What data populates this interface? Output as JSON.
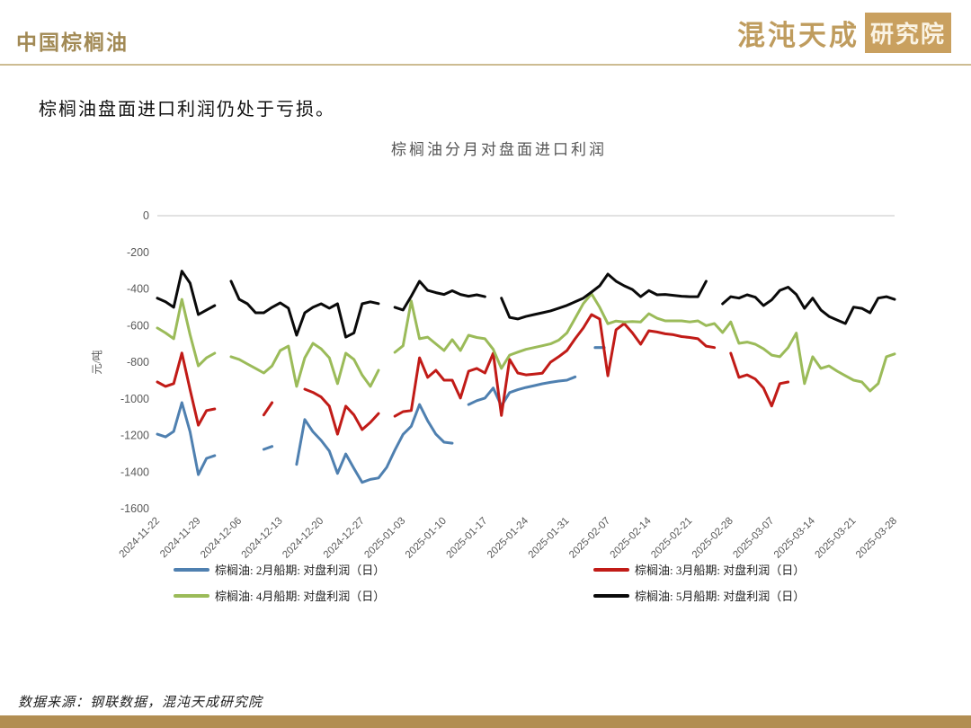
{
  "header": {
    "title": "中国棕榈油",
    "logo_text": "混沌天成",
    "logo_badge": "研究院"
  },
  "subtitle": "棕榈油盘面进口利润仍处于亏损。",
  "footer": {
    "source": "数据来源：钢联数据，混沌天成研究院"
  },
  "colors": {
    "header_gold": "#a28a55",
    "logo_gold": "#bf9c5e",
    "badge_bg": "#c9a05f",
    "rule": "#cdbc92",
    "bottom_bar": "#b28e52",
    "tick_gray": "#595959",
    "zero_gridline": "#d9d9d9",
    "series_blue": "#4f80b0",
    "series_red": "#c11b17",
    "series_green": "#9bbb59",
    "series_black": "#0a0a0a"
  },
  "chart_data": {
    "type": "line",
    "title": "棕榈油分月对盘面进口利润",
    "ylabel": "元/吨",
    "ylim": [
      -1600,
      0
    ],
    "y_ticks": [
      0,
      -200,
      -400,
      -600,
      -800,
      -1000,
      -1200,
      -1400,
      -1600
    ],
    "grid": "zero-line-only",
    "legend_position": "bottom",
    "x_slots": 91,
    "x_tick_every": 5,
    "x_tick_labels": [
      "2024-11-22",
      "2024-11-29",
      "2024-12-06",
      "2024-12-13",
      "2024-12-20",
      "2024-12-27",
      "2025-01-03",
      "2025-01-10",
      "2025-01-17",
      "2025-01-24",
      "2025-01-31",
      "2025-02-07",
      "2025-02-14",
      "2025-02-21",
      "2025-02-28",
      "2025-03-07",
      "2025-03-14",
      "2025-03-21",
      "2025-03-28"
    ],
    "series": [
      {
        "name": "棕榈油: 2月船期: 对盘利润（日）",
        "color": "#4f80b0",
        "values": [
          -1193,
          -1208,
          -1178,
          -1021,
          -1180,
          -1414,
          -1325,
          -1310,
          null,
          null,
          null,
          null,
          null,
          -1276,
          -1260,
          null,
          null,
          -1358,
          -1113,
          -1180,
          -1227,
          -1285,
          -1407,
          -1301,
          -1380,
          -1456,
          -1440,
          -1432,
          -1374,
          -1280,
          -1194,
          -1150,
          -1031,
          -1120,
          -1193,
          -1237,
          -1242,
          null,
          -1031,
          -1010,
          -996,
          -941,
          -1039,
          -966,
          -950,
          -938,
          -928,
          -918,
          -910,
          -903,
          -898,
          -880,
          null,
          null,
          -720,
          null,
          null,
          null,
          null,
          null,
          null,
          null,
          null,
          null,
          null,
          null,
          null,
          null,
          null,
          null,
          null,
          null,
          null,
          null,
          null,
          null,
          null,
          null,
          null,
          null,
          null,
          null,
          null,
          null,
          null,
          null,
          null,
          null,
          null,
          null,
          null
        ]
      },
      {
        "name": "棕榈油: 3月船期: 对盘利润（日）",
        "color": "#c11b17",
        "values": [
          -908,
          -932,
          -917,
          -750,
          -950,
          -1144,
          -1064,
          -1055,
          null,
          null,
          null,
          null,
          null,
          -1088,
          -1021,
          null,
          null,
          null,
          -947,
          -965,
          -990,
          -1040,
          -1193,
          -1040,
          -1088,
          -1168,
          -1129,
          -1080,
          null,
          -1095,
          -1070,
          -1064,
          -776,
          -883,
          -844,
          -898,
          -898,
          -996,
          -849,
          -834,
          -859,
          -751,
          -1091,
          -785,
          -859,
          -869,
          -865,
          -860,
          -800,
          -770,
          -736,
          -672,
          -613,
          -540,
          -564,
          -874,
          -623,
          -589,
          -640,
          -702,
          -628,
          -635,
          -645,
          -650,
          -660,
          -665,
          -672,
          -712,
          -720,
          null,
          -751,
          -883,
          -869,
          -892,
          -941,
          -1039,
          -917,
          -908,
          null,
          null,
          null,
          null,
          null,
          null,
          null,
          null,
          null,
          null,
          null,
          null,
          null
        ]
      },
      {
        "name": "棕榈油: 4月船期: 对盘利润（日）",
        "color": "#9bbb59",
        "values": [
          -613,
          -640,
          -672,
          -457,
          -650,
          -820,
          -776,
          -751,
          null,
          -770,
          -785,
          -810,
          -834,
          -859,
          -820,
          -736,
          -712,
          -932,
          -776,
          -697,
          -727,
          -776,
          -917,
          -751,
          -785,
          -870,
          -932,
          -844,
          null,
          -746,
          -710,
          -466,
          -672,
          -663,
          -700,
          -736,
          -677,
          -736,
          -653,
          -665,
          -672,
          -730,
          -834,
          -761,
          -745,
          -730,
          -720,
          -710,
          -700,
          -680,
          -640,
          -560,
          -480,
          -426,
          -500,
          -590,
          -575,
          -580,
          -578,
          -580,
          -535,
          -560,
          -574,
          -574,
          -574,
          -580,
          -574,
          -600,
          -589,
          -638,
          -580,
          -697,
          -690,
          -702,
          -727,
          -761,
          -770,
          -720,
          -641,
          -917,
          -770,
          -834,
          -820,
          -849,
          -874,
          -898,
          -908,
          -957,
          -917,
          -770,
          -755
        ]
      },
      {
        "name": "棕榈油: 5月船期: 对盘利润（日）",
        "color": "#0a0a0a",
        "values": [
          -450,
          -470,
          -500,
          -303,
          -368,
          -540,
          -515,
          -491,
          null,
          -358,
          -457,
          -481,
          -530,
          -530,
          -500,
          -476,
          -505,
          -653,
          -530,
          -500,
          -481,
          -505,
          -481,
          -663,
          -640,
          -481,
          -470,
          -480,
          null,
          -500,
          -515,
          -440,
          -358,
          -408,
          -420,
          -430,
          -410,
          -430,
          -440,
          -432,
          -442,
          null,
          -450,
          -555,
          -564,
          -550,
          -540,
          -530,
          -520,
          -505,
          -490,
          -470,
          -450,
          -417,
          -383,
          -319,
          -358,
          -383,
          -403,
          -442,
          -409,
          -432,
          -430,
          -435,
          -440,
          -442,
          -442,
          -358,
          null,
          -481,
          -442,
          -450,
          -432,
          -445,
          -491,
          -460,
          -408,
          -390,
          -430,
          -506,
          -450,
          -515,
          -550,
          -570,
          -589,
          -499,
          -506,
          -530,
          -450,
          -442,
          -457
        ]
      }
    ]
  }
}
